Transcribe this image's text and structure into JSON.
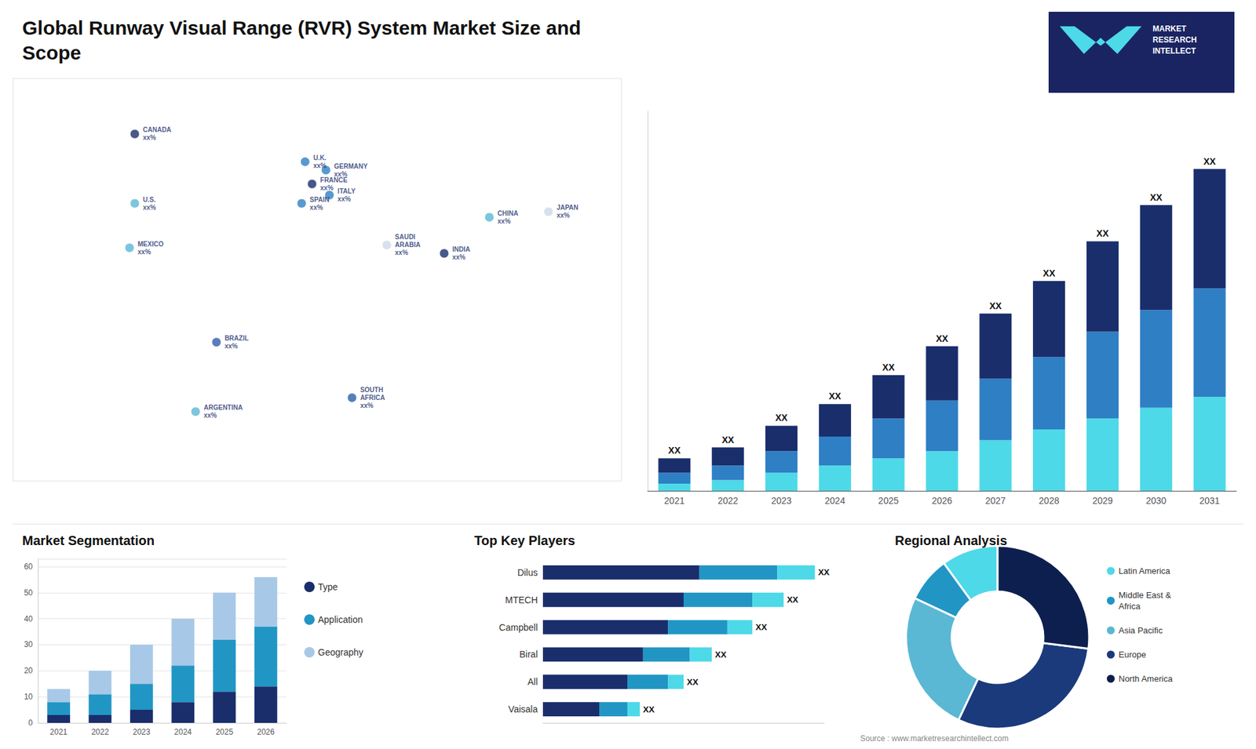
{
  "chart_data": [
    {
      "type": "bar",
      "title": "Global Runway Visual Range (RVR) System Market Size and\nScope",
      "categories": [
        "2021",
        "2022",
        "2023",
        "2024",
        "2025",
        "2026",
        "2027",
        "2028",
        "2029",
        "2030",
        "2031"
      ],
      "stacked": true,
      "series": [
        {
          "color": "#4dd9e8",
          "values": [
            2,
            3,
            5,
            7,
            9,
            11,
            14,
            17,
            20,
            23,
            26
          ]
        },
        {
          "color": "#2e7fc4",
          "values": [
            3,
            4,
            6,
            8,
            11,
            14,
            17,
            20,
            24,
            27,
            30
          ]
        },
        {
          "color": "#1a2e6c",
          "values": [
            4,
            5,
            7,
            9,
            12,
            15,
            18,
            21,
            25,
            29,
            33
          ]
        }
      ],
      "ylim": [
        0,
        105
      ],
      "tick_labels": "x",
      "grid": false,
      "annotations": [
        {
          "text": "XX",
          "x": "2021"
        },
        {
          "text": "XX",
          "x": "2022"
        },
        {
          "text": "XX",
          "x": "2023"
        },
        {
          "text": "XX",
          "x": "2024"
        },
        {
          "text": "XX",
          "x": "2025"
        },
        {
          "text": "XX",
          "x": "2026"
        },
        {
          "text": "XX",
          "x": "2027"
        },
        {
          "text": "XX",
          "x": "2028"
        },
        {
          "text": "XX",
          "x": "2029"
        },
        {
          "text": "XX",
          "x": "2030"
        },
        {
          "text": "XX",
          "x": "2031"
        },
        {
          "text": "MARKET\nRESEARCH\nINTELLECT"
        },
        {
          "text": "Source : www.marketresearchintellect.com"
        }
      ]
    },
    {
      "type": "map",
      "xlim": [
        -170,
        180
      ],
      "ylim": [
        -60,
        85
      ],
      "tick_labels": false,
      "annotations": [
        {
          "text": "CANADA\nxx%",
          "x": -100,
          "y": 65,
          "color": "#1a2e6c"
        },
        {
          "text": "U.S.\nxx%",
          "x": -100,
          "y": 40,
          "color": "#5ab8d4"
        },
        {
          "text": "MEXICO\nxx%",
          "x": -103,
          "y": 24,
          "color": "#5ab8d4"
        },
        {
          "text": "BRAZIL\nxx%",
          "x": -53,
          "y": -10,
          "color": "#2e5faa"
        },
        {
          "text": "ARGENTINA\nxx%",
          "x": -65,
          "y": -35,
          "color": "#5ab8d4"
        },
        {
          "text": "U.K.\nxx%",
          "x": -2,
          "y": 55,
          "color": "#2e7fc4"
        },
        {
          "text": "FRANCE\nxx%",
          "x": 2,
          "y": 47,
          "color": "#1a2e6c"
        },
        {
          "text": "SPAIN\nxx%",
          "x": -4,
          "y": 40,
          "color": "#2e7fc4"
        },
        {
          "text": "GERMANY\nxx%",
          "x": 10,
          "y": 52,
          "color": "#2e7fc4"
        },
        {
          "text": "ITALY\nxx%",
          "x": 12,
          "y": 43,
          "color": "#2e7fc4"
        },
        {
          "text": "SAUDI\nARABIA\nxx%",
          "x": 45,
          "y": 25,
          "color": "#d0d8e8"
        },
        {
          "text": "SOUTH\nAFRICA\nxx%",
          "x": 25,
          "y": -30,
          "color": "#2e5faa"
        },
        {
          "text": "CHINA\nxx%",
          "x": 104,
          "y": 35,
          "color": "#5ab8d4"
        },
        {
          "text": "INDIA\nxx%",
          "x": 78,
          "y": 22,
          "color": "#1a2e6c"
        },
        {
          "text": "JAPAN\nxx%",
          "x": 138,
          "y": 37,
          "color": "#d0d8e8"
        }
      ]
    },
    {
      "type": "bar",
      "title": "Market Segmentation",
      "categories": [
        "2021",
        "2022",
        "2023",
        "2024",
        "2025",
        "2026"
      ],
      "stacked": true,
      "series": [
        {
          "name": "Type",
          "color": "#1a2e6c",
          "values": [
            3,
            3,
            5,
            8,
            12,
            14
          ]
        },
        {
          "name": "Application",
          "color": "#2196c4",
          "values": [
            5,
            8,
            10,
            14,
            20,
            23
          ]
        },
        {
          "name": "Geography",
          "color": "#a8c8e8",
          "values": [
            5,
            9,
            15,
            18,
            18,
            19
          ]
        }
      ],
      "ylim": [
        0,
        63
      ],
      "yticks": [
        0,
        10,
        20,
        30,
        40,
        50,
        60
      ],
      "grid": true,
      "legend": "right"
    },
    {
      "type": "bar",
      "orientation": "horizontal",
      "title": "Top Key Players",
      "categories": [
        "Dilus",
        "MTECH",
        "Campbell",
        "Biral",
        "All",
        "Vaisala"
      ],
      "stacked": true,
      "series": [
        {
          "color": "#1a2e6c",
          "values": [
            50,
            45,
            40,
            32,
            27,
            18
          ]
        },
        {
          "color": "#2196c4",
          "values": [
            25,
            22,
            19,
            15,
            13,
            9
          ]
        },
        {
          "color": "#4dd9e8",
          "values": [
            12,
            10,
            8,
            7,
            5,
            4
          ]
        }
      ],
      "xlim": [
        0,
        90
      ],
      "tick_labels": "y",
      "grid": false,
      "annotations": [
        {
          "text": "XX",
          "y": "Dilus"
        },
        {
          "text": "XX",
          "y": "MTECH"
        },
        {
          "text": "XX",
          "y": "Campbell"
        },
        {
          "text": "XX",
          "y": "Biral"
        },
        {
          "text": "XX",
          "y": "All"
        },
        {
          "text": "XX",
          "y": "Vaisala"
        }
      ]
    },
    {
      "type": "pie",
      "title": "Regional Analysis",
      "categories": [
        "Latin America",
        "Middle East &\nAfrica",
        "Asia Pacific",
        "Europe",
        "North America"
      ],
      "values": [
        10,
        8,
        25,
        30,
        27
      ],
      "colors": [
        "#4dd9e8",
        "#2196c4",
        "#5ab8d4",
        "#1a3a7c",
        "#0d1f4e"
      ],
      "legend": "right"
    }
  ]
}
